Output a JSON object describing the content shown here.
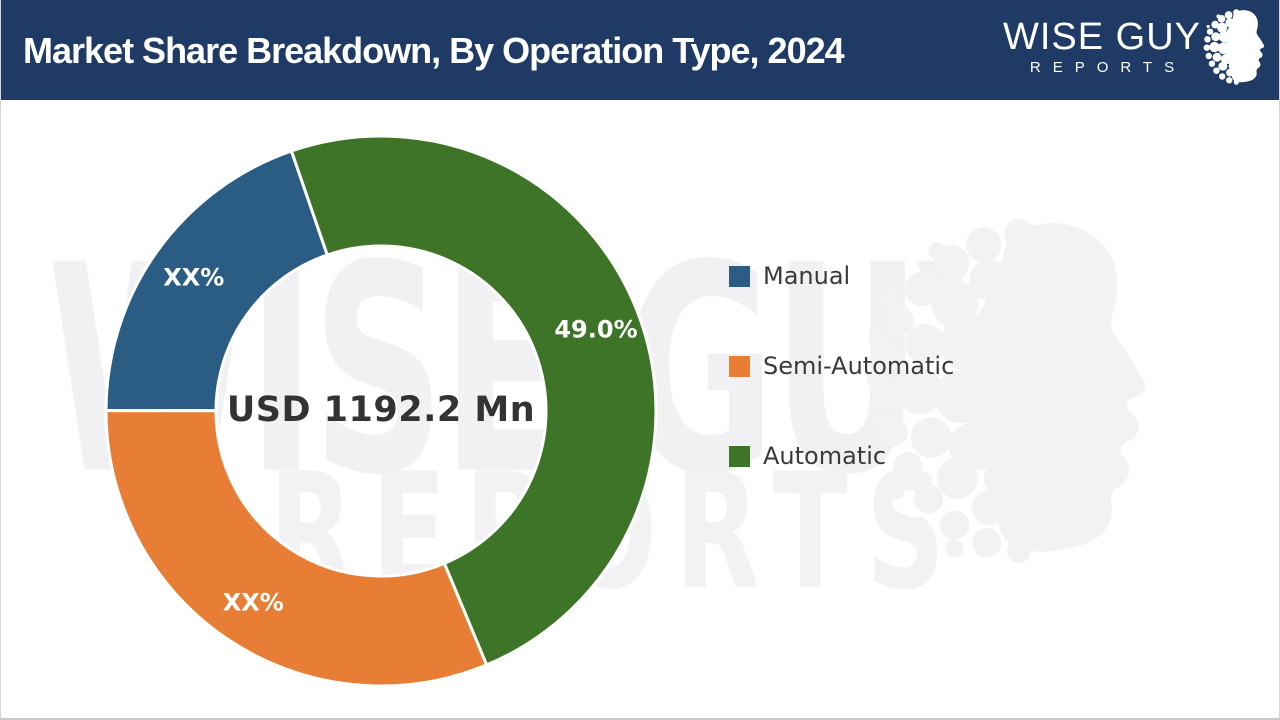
{
  "header": {
    "title": "Market Share Breakdown, By Operation Type, 2024",
    "logo": {
      "line1": "WISE GUY",
      "line2": "REPORTS"
    }
  },
  "watermark": {
    "line1": "WISE GUY",
    "line2": "REPORTS"
  },
  "chart_data": {
    "type": "pie",
    "subtype": "donut",
    "title": "Market Share Breakdown, By Operation Type, 2024",
    "center_label": "USD 1192.2 Mn",
    "hole_ratio": 0.6,
    "start_angle": 109,
    "direction": "counterclockwise",
    "legend_position": "right",
    "segments": [
      {
        "name": "Manual",
        "display_label": "XX%",
        "value_pct": 19.7,
        "color": "#2A5C84"
      },
      {
        "name": "Semi-Automatic",
        "display_label": "XX%",
        "value_pct": 31.3,
        "color": "#E87D35"
      },
      {
        "name": "Automatic",
        "display_label": "49.0%",
        "value_pct": 49.0,
        "color": "#3D7427"
      }
    ]
  },
  "colors": {
    "header_bg": "#203A66",
    "watermark": "#f1f1f4",
    "legend_text": "#3a3a3a",
    "center_text": "#333333"
  }
}
